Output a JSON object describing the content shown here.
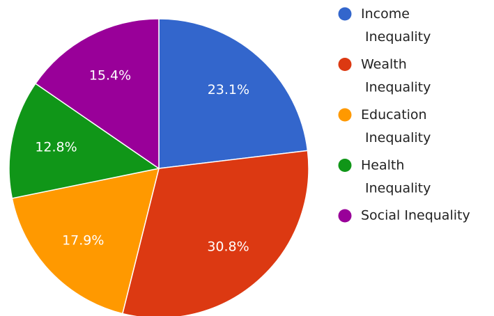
{
  "chart_data": {
    "type": "pie",
    "categories": [
      "Income Inequality",
      "Wealth Inequality",
      "Education Inequality",
      "Health Inequality",
      "Social Inequality"
    ],
    "values": [
      23.1,
      30.8,
      17.9,
      12.8,
      15.4
    ],
    "value_labels": [
      "23.1%",
      "30.8%",
      "17.9%",
      "12.8%",
      "15.4%"
    ],
    "colors": [
      "#3366cc",
      "#dc3912",
      "#ff9900",
      "#109618",
      "#990099"
    ],
    "legend": "right"
  }
}
